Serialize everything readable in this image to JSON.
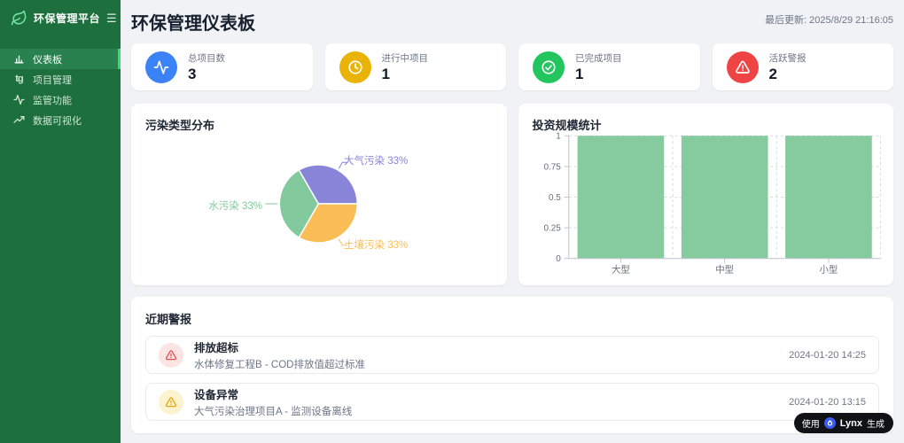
{
  "app": {
    "title": "环保管理平台",
    "page_title": "环保管理仪表板",
    "last_updated": "最后更新: 2025/8/29 21:16:05"
  },
  "sidebar": {
    "items": [
      {
        "label": "仪表板",
        "icon": "bar-chart-icon",
        "active": true
      },
      {
        "label": "项目管理",
        "icon": "projects-icon",
        "active": false
      },
      {
        "label": "监管功能",
        "icon": "activity-icon",
        "active": false
      },
      {
        "label": "数据可视化",
        "icon": "trending-up-icon",
        "active": false
      }
    ]
  },
  "stats": [
    {
      "label": "总项目数",
      "value": "3",
      "icon": "activity-icon",
      "color": "#3b82f6"
    },
    {
      "label": "进行中项目",
      "value": "1",
      "icon": "clock-icon",
      "color": "#eab308"
    },
    {
      "label": "已完成项目",
      "value": "1",
      "icon": "check-circle-icon",
      "color": "#22c55e"
    },
    {
      "label": "活跃警报",
      "value": "2",
      "icon": "alert-triangle-icon",
      "color": "#ef4444"
    }
  ],
  "chart_data": [
    {
      "type": "pie",
      "title": "污染类型分布",
      "labels": [
        "大气污染",
        "土壤污染",
        "水污染"
      ],
      "values": [
        33,
        33,
        33
      ],
      "display_labels": [
        "大气污染 33%",
        "土壤污染 33%",
        "水污染 33%"
      ],
      "colors": [
        "#8884d8",
        "#fbbd55",
        "#82ca9d"
      ],
      "start_angle_deg": -30,
      "label_position": "outside"
    },
    {
      "type": "bar",
      "title": "投资规模统计",
      "categories": [
        "大型",
        "中型",
        "小型"
      ],
      "values": [
        1,
        1,
        1
      ],
      "ylim": [
        0,
        1
      ],
      "y_ticks": [
        0,
        0.25,
        0.5,
        0.75,
        1
      ],
      "bar_color": "#85cb9e",
      "grid": "dashed",
      "xlabel": "",
      "ylabel": ""
    }
  ],
  "alerts": {
    "title": "近期警报",
    "items": [
      {
        "title": "排放超标",
        "description": "水体修复工程B - COD排放值超过标准",
        "time": "2024-01-20 14:25",
        "severity": "high"
      },
      {
        "title": "设备异常",
        "description": "大气污染治理项目A - 监测设备离线",
        "time": "2024-01-20 13:15",
        "severity": "medium"
      }
    ]
  },
  "badge": {
    "prefix": "使用",
    "brand": "Lynx",
    "suffix": "生成"
  }
}
